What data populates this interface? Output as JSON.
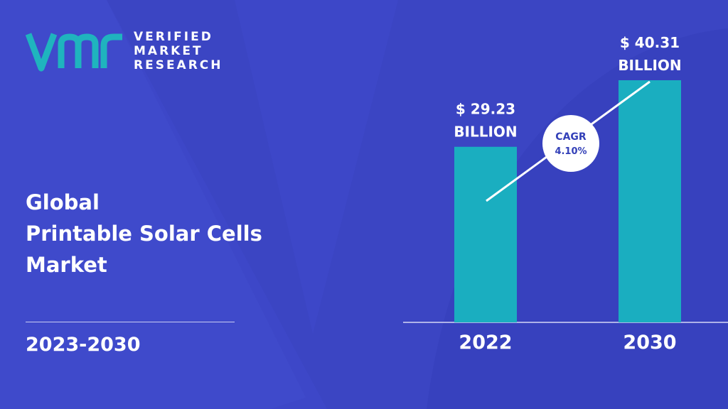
{
  "brand": {
    "line1": "VERIFIED",
    "line2": "MARKET",
    "line3": "RESEARCH",
    "colors": {
      "logo": "#1fb4be",
      "bar": "#1aaec0",
      "background": "#3d47c8"
    }
  },
  "heading": {
    "line1": "Global",
    "line2": "Printable Solar Cells",
    "line3": "Market"
  },
  "period": "2023-2030",
  "cagr": {
    "label": "CAGR",
    "value": "4.10%"
  },
  "chart_data": {
    "type": "bar",
    "categories": [
      "2022",
      "2030"
    ],
    "values": [
      29.23,
      40.31
    ],
    "value_labels": [
      {
        "amount": "$ 29.23",
        "unit": "BILLION"
      },
      {
        "amount": "$ 40.31",
        "unit": "BILLION"
      }
    ],
    "title": "",
    "xlabel": "",
    "ylabel": "",
    "grid": false,
    "legend": "none"
  }
}
